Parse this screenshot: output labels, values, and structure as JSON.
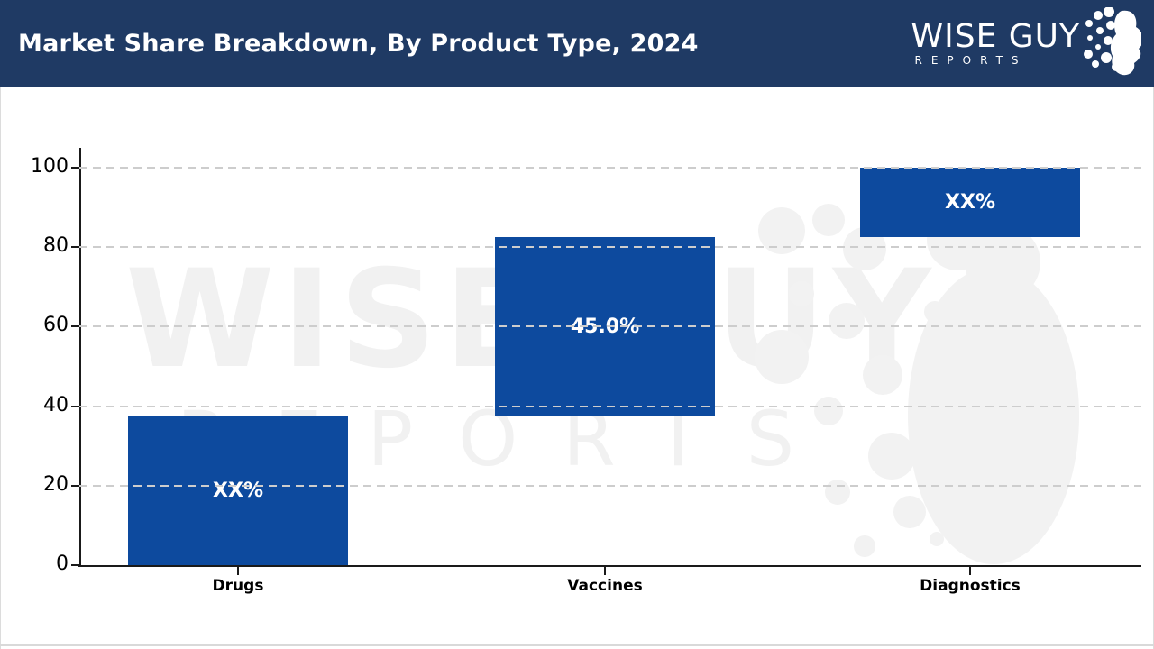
{
  "header": {
    "title": "Market Share Breakdown, By Product Type, 2024",
    "background_color": "#1f3a64",
    "logo": {
      "line1": "WISE GUY",
      "line2": "REPORTS"
    }
  },
  "watermark": {
    "line1": "WISE GUY",
    "line2": "REPORTS"
  },
  "chart_data": {
    "type": "bar",
    "subtype": "waterfall",
    "title": "Market Share Breakdown, By Product Type, 2024",
    "categories": [
      "Drugs",
      "Vaccines",
      "Diagnostics"
    ],
    "segments": [
      {
        "category": "Drugs",
        "start": 0,
        "end": 37.5,
        "label": "XX%"
      },
      {
        "category": "Vaccines",
        "start": 37.5,
        "end": 82.5,
        "label": "45.0%"
      },
      {
        "category": "Diagnostics",
        "start": 82.5,
        "end": 100,
        "label": "XX%"
      }
    ],
    "yticks": [
      0,
      20,
      40,
      60,
      80,
      100
    ],
    "ylim": [
      0,
      105
    ],
    "xlabel": "",
    "ylabel": "",
    "grid": "horizontal-dashed-above-bars",
    "legend": "none",
    "bar_color": "#0d4a9e",
    "bar_label_color": "#ffffff",
    "axis_color": "#1a1a1a",
    "grid_color": "#cdcdcd"
  }
}
